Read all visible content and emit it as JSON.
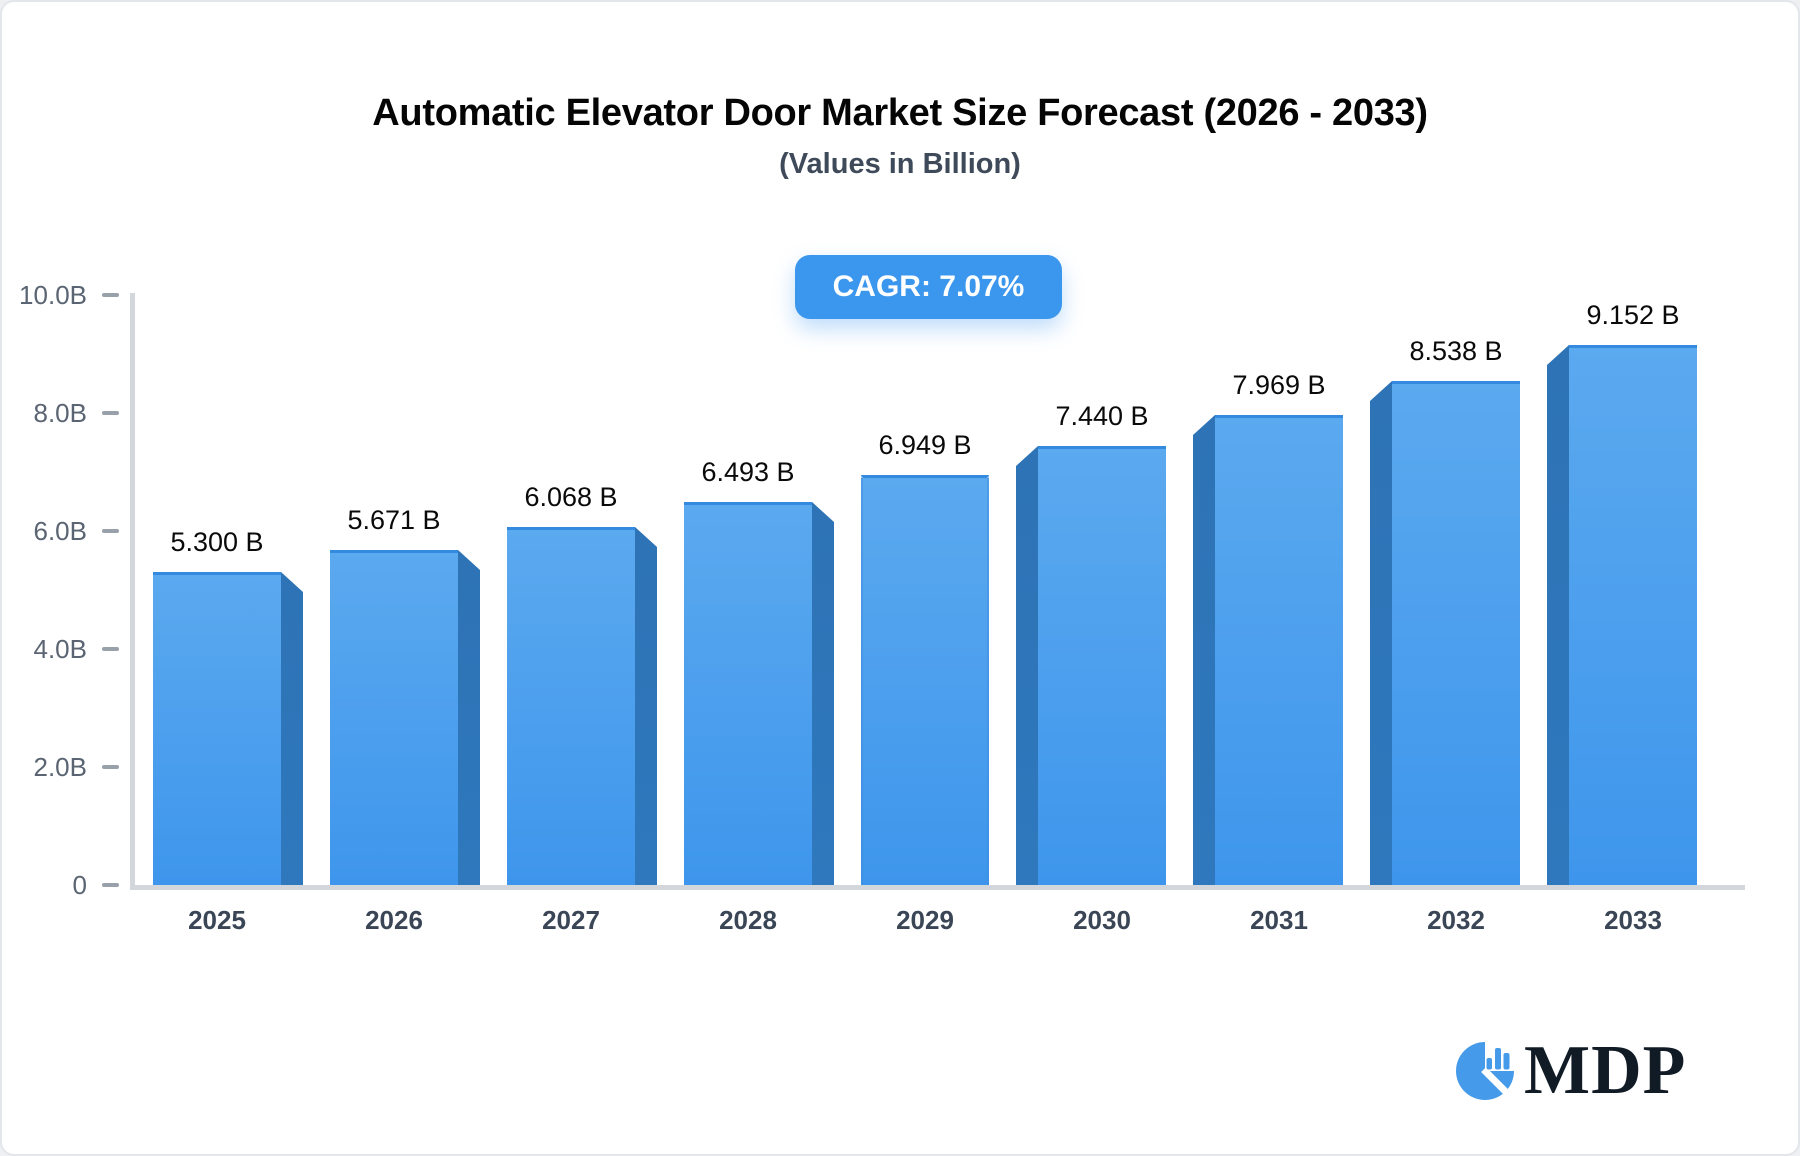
{
  "header": {
    "title": "Automatic Elevator Door Market Size Forecast (2026 - 2033)",
    "subtitle": "(Values in Billion)",
    "cagr_badge": "CAGR: 7.07%"
  },
  "chart_data": {
    "type": "bar",
    "title": "Automatic Elevator Door Market Size Forecast (2026 - 2033)",
    "subtitle": "(Values in Billion)",
    "unit": "Billion",
    "cagr": "7.07%",
    "categories": [
      "2025",
      "2026",
      "2027",
      "2028",
      "2029",
      "2030",
      "2031",
      "2032",
      "2033"
    ],
    "values": [
      5.3,
      5.671,
      6.068,
      6.493,
      6.949,
      7.44,
      7.969,
      8.538,
      9.152
    ],
    "bar_labels": [
      "5.300 B",
      "5.671 B",
      "6.068 B",
      "6.493 B",
      "6.949 B",
      "7.440 B",
      "7.969 B",
      "8.538 B",
      "9.152 B"
    ],
    "xlabel": "",
    "ylabel": "",
    "ylim": [
      0,
      10
    ],
    "grid": false,
    "legend": "none",
    "yticks": [
      {
        "value": 0,
        "label": "0"
      },
      {
        "value": 2,
        "label": "2.0B"
      },
      {
        "value": 4,
        "label": "4.0B"
      },
      {
        "value": 6,
        "label": "6.0B"
      },
      {
        "value": 8,
        "label": "8.0B"
      },
      {
        "value": 10,
        "label": "10.0B"
      }
    ],
    "colors": {
      "bar_face_top": "#5BA9EF",
      "bar_face_bottom": "#3E96EC",
      "bar_top_edge": "#338ADE",
      "bar_side": "#2D73B5",
      "axis": "#D3D6DB",
      "tick_mark": "#98A0AA",
      "tick_label": "#5A6472",
      "category_label": "#3A4656",
      "value_label": "#0A0A0A",
      "badge_bg": "#3B96EE",
      "badge_text": "#FFFFFF"
    }
  },
  "logo": {
    "text": "MDP",
    "icon": "pie-bar-chart-icon",
    "mark_color": "#459AE9",
    "text_color": "#111B26"
  }
}
